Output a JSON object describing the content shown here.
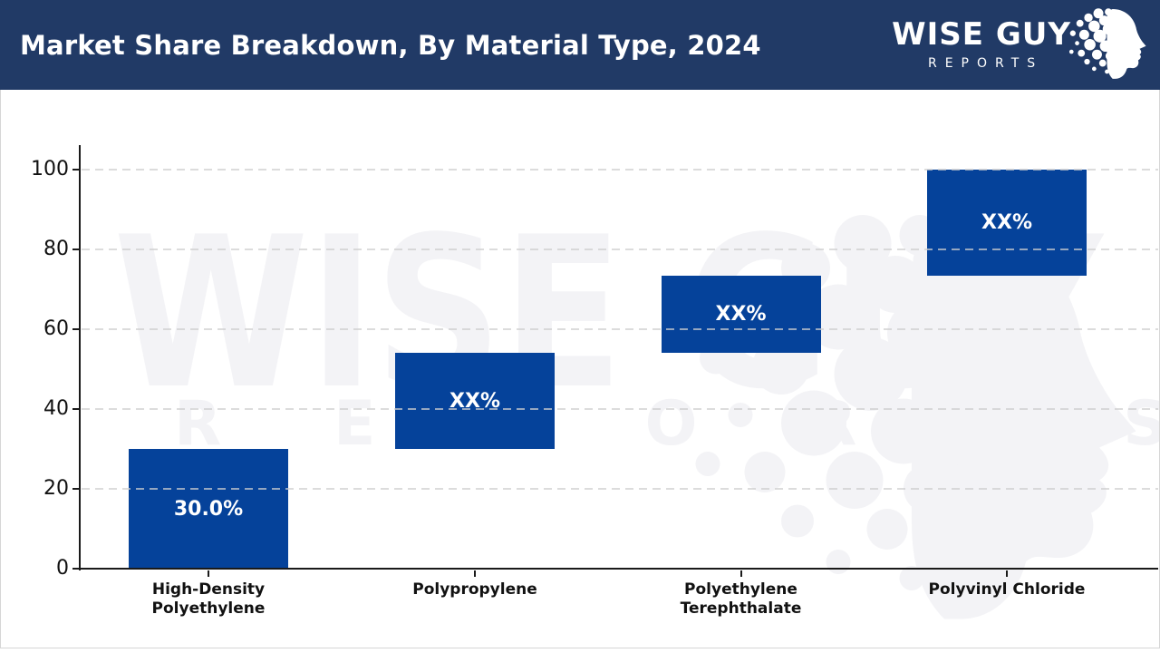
{
  "header": {
    "title": "Market Share Breakdown, By Material Type, 2024",
    "logo": {
      "line1": "WISE GUY",
      "line2": "REPORTS"
    }
  },
  "watermark": {
    "line1": "WISE GUY",
    "line2": "R E P O R T S"
  },
  "colors": {
    "header_bg": "#213a66",
    "bar": "#05429a",
    "bar_label_text": "#ffffff",
    "grid": "#cecece",
    "axis": "#1a1a1a",
    "watermark": "#f3f3f6"
  },
  "chart_data": {
    "type": "bar",
    "variant": "waterfall",
    "title": "Market Share Breakdown, By Material Type, 2024",
    "categories": [
      [
        "High-Density",
        "Polyethylene"
      ],
      [
        "Polypropylene"
      ],
      [
        "Polyethylene",
        "Terephthalate"
      ],
      [
        "Polyvinyl Chloride"
      ]
    ],
    "segments": [
      {
        "label": "30.0%",
        "start": 0,
        "end": 30
      },
      {
        "label": "XX%",
        "start": 30,
        "end": 54
      },
      {
        "label": "XX%",
        "start": 54,
        "end": 73.5
      },
      {
        "label": "XX%",
        "start": 73.5,
        "end": 100
      }
    ],
    "values_masked": [
      30.0,
      null,
      null,
      null
    ],
    "yticks": [
      0,
      20,
      40,
      60,
      80,
      100
    ],
    "ylim": [
      0,
      105
    ],
    "grid": "dashed-horizontal",
    "legend": "none",
    "xlabel": "",
    "ylabel": ""
  }
}
